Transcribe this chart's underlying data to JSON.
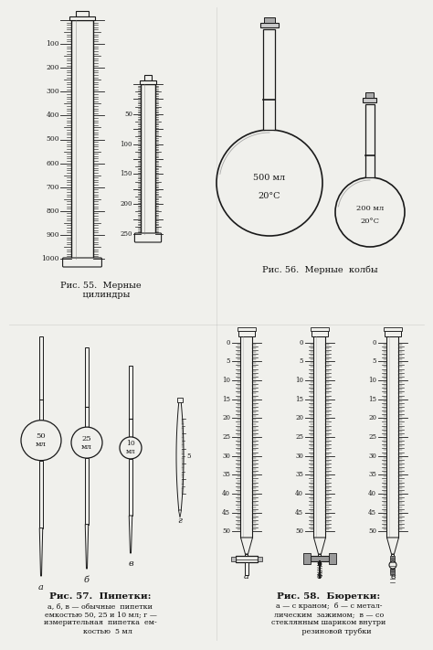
{
  "bg_color": "#f0f0ec",
  "line_color": "#1a1a1a",
  "text_color": "#111111",
  "fig55_title": "Рис. 55.  Мерные\n    цилиндры",
  "fig56_title": "Рис. 56.  Мерные  колбы",
  "fig57_title": "Рис. 57.  Пипетки:",
  "fig57_sub": "а, б, в — обычные  пипетки\nемкостью 50, 25 и 10 мл; г —\nизмерительная  пипетка  ем-\n      костью  5 мл",
  "fig58_title": "Рис. 58.  Бюретки:",
  "fig58_sub": "а — с краном;  б — с метал-\nлическим  зажимом;  в — со\nстеклянным шариком внутри\n       резиновой трубки"
}
